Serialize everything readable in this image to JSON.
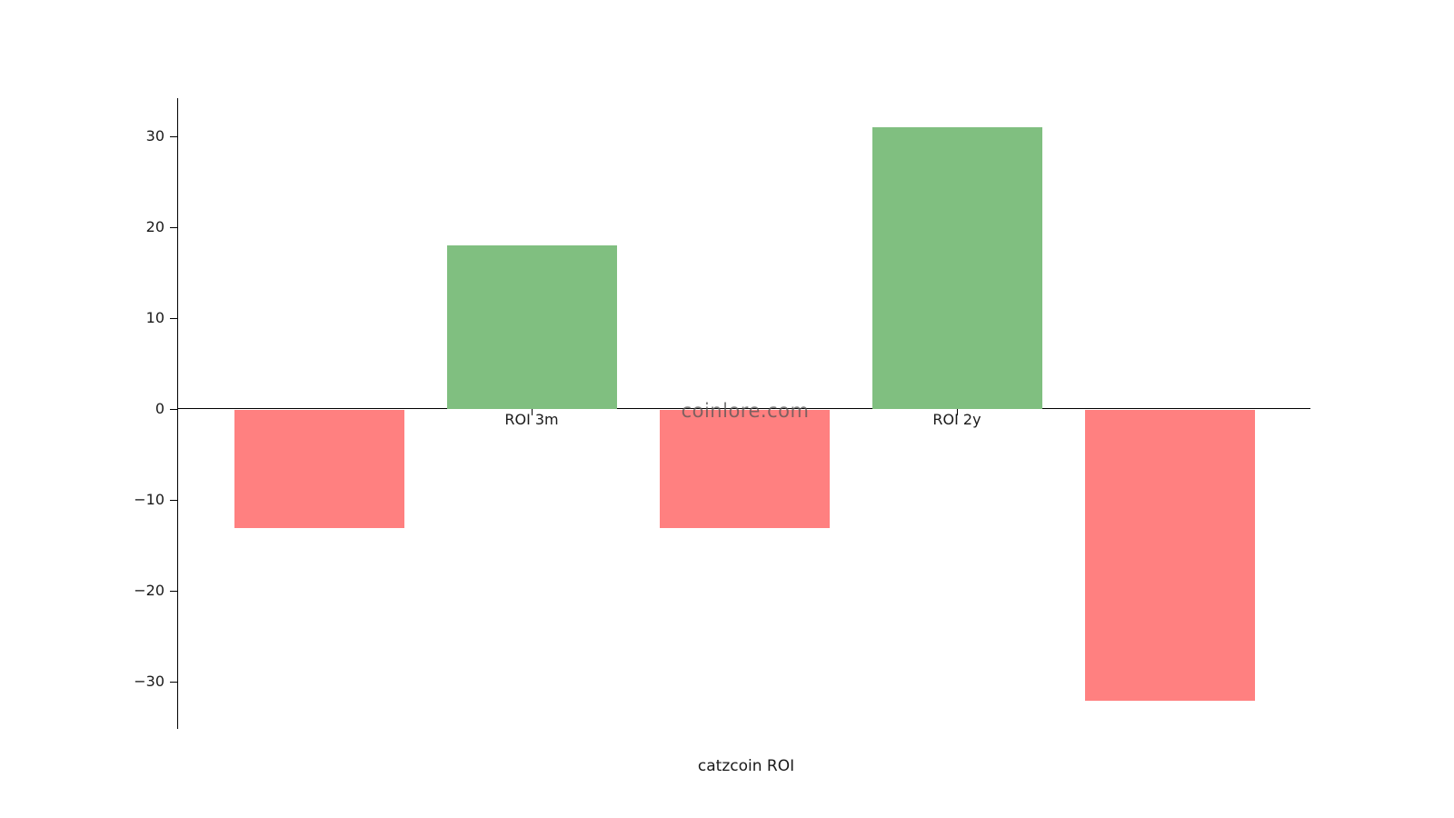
{
  "watermark": "coinlore.com",
  "chart_data": {
    "type": "bar",
    "title": "",
    "xlabel": "catzcoin ROI",
    "ylabel": "",
    "categories": [
      "",
      "ROI 3m",
      "",
      "ROI 2y",
      ""
    ],
    "values": [
      -13,
      18,
      -13,
      31,
      -32
    ],
    "bar_colors": [
      "#ff8080",
      "#80bf80",
      "#ff8080",
      "#80bf80",
      "#ff8080"
    ],
    "positive_color": "#80bf80",
    "negative_color": "#ff8080",
    "y_ticks": [
      30,
      20,
      10,
      0,
      -10,
      -20,
      -30
    ],
    "y_tick_labels": [
      "30",
      "20",
      "10",
      "0",
      "−10",
      "−20",
      "−30"
    ],
    "ylim": [
      -35.15,
      34.15
    ],
    "grid": false,
    "legend": "none",
    "axis_color": "#000000",
    "watermark_color": "#555555"
  }
}
